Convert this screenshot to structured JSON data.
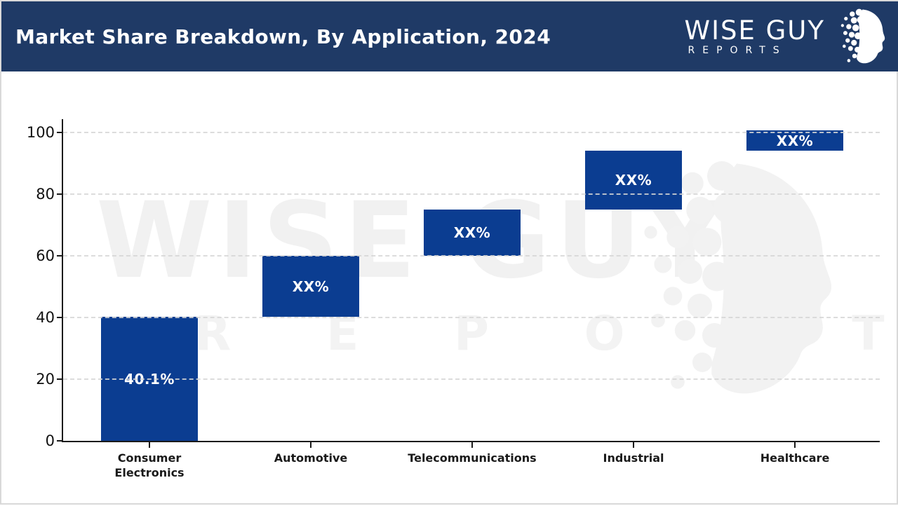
{
  "header": {
    "title": "Market Share Breakdown, By Application, 2024",
    "bg_color": "#1f3a66",
    "logo": {
      "line1": "WISE GUY",
      "line2": "REPORTS"
    }
  },
  "watermark": {
    "line1": "WISE GUY",
    "line2": "R E P O R T S"
  },
  "chart_data": {
    "type": "bar",
    "variant": "waterfall",
    "title": "Market Share Breakdown, By Application, 2024",
    "unit": "%",
    "ylim": [
      0,
      105
    ],
    "yticks": [
      0,
      20,
      40,
      60,
      80,
      100
    ],
    "grid": "horizontal-dashed",
    "legend": "none",
    "bars": [
      {
        "category": "Consumer Electronics",
        "category_lines": [
          "Consumer",
          "Electronics"
        ],
        "start": 0,
        "end": 40.1,
        "value_label": "40.1%"
      },
      {
        "category": "Automotive",
        "category_lines": [
          "Automotive"
        ],
        "start": 40.1,
        "end": 60,
        "value_label": "XX%"
      },
      {
        "category": "Telecommunications",
        "category_lines": [
          "Telecommunications"
        ],
        "start": 60,
        "end": 75,
        "value_label": "XX%"
      },
      {
        "category": "Industrial",
        "category_lines": [
          "Industrial"
        ],
        "start": 75,
        "end": 94,
        "value_label": "XX%"
      },
      {
        "category": "Healthcare",
        "category_lines": [
          "Healthcare"
        ],
        "start": 94,
        "end": 100.5,
        "value_label": "XX%"
      }
    ],
    "colors": {
      "bar": "#0b3d91",
      "bar_label": "#ffffff",
      "grid": "#d6d6d6",
      "axis": "#1a1a1a",
      "header_bg": "#1f3a66",
      "watermark": "#f1f1f1"
    }
  }
}
